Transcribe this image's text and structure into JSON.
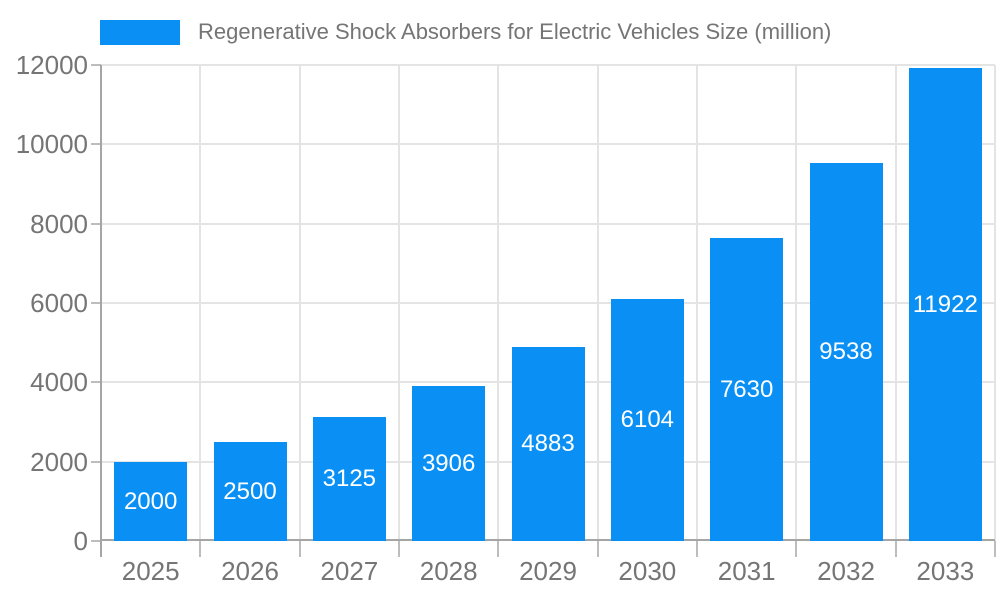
{
  "chart_data": {
    "type": "bar",
    "title": "Regenerative Shock Absorbers for Electric Vehicles Size (million)",
    "categories": [
      "2025",
      "2026",
      "2027",
      "2028",
      "2029",
      "2030",
      "2031",
      "2032",
      "2033"
    ],
    "values": [
      2000,
      2500,
      3125,
      3906,
      4883,
      6104,
      7630,
      9538,
      11922
    ],
    "xlabel": "",
    "ylabel": "",
    "ylim": [
      0,
      12000
    ],
    "yticks": [
      0,
      2000,
      4000,
      6000,
      8000,
      10000,
      12000
    ],
    "grid": true,
    "legend_position": "top-left",
    "colors": {
      "bar": "#0a90f5",
      "value_label": "#ffffff",
      "axis_text": "#757575",
      "gridline": "#e4e4e4",
      "axis_line": "#a5a5a5",
      "tick": "#bdbdbd",
      "background": "#ffffff"
    }
  }
}
